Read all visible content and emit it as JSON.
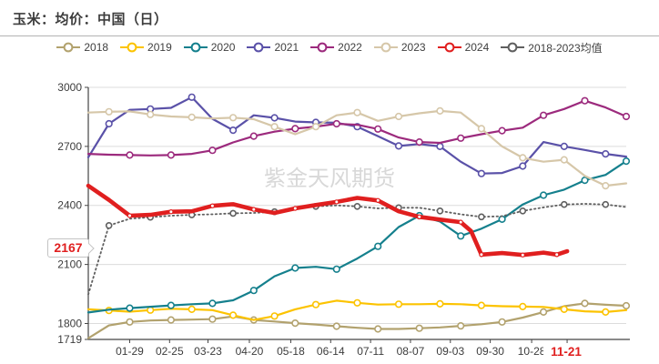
{
  "title": "玉米：均价：中国（日）",
  "watermark": "紫金天风期货",
  "latest_value_tag": "2167",
  "accent_red": "#e01f1f",
  "chart_data": {
    "type": "line",
    "title": "玉米：均价：中国（日）",
    "legend_position": "top",
    "grid": true,
    "y_axis": {
      "min": 1719,
      "max": 3000,
      "grid_values": [
        3000,
        2700,
        2400,
        2100,
        1800
      ],
      "ticks": [
        3000,
        2700,
        2400,
        2100,
        1800,
        1719
      ]
    },
    "x_axis": {
      "range_days": [
        1,
        365
      ],
      "tick_labels": [
        "01-29",
        "02-25",
        "03-23",
        "04-20",
        "05-18",
        "06-14",
        "07-11",
        "08-07",
        "09-03",
        "09-30",
        "10-28",
        "11-21"
      ],
      "tick_days": [
        29,
        56,
        82,
        110,
        138,
        165,
        192,
        219,
        246,
        273,
        301,
        325
      ],
      "highlighted_label": "11-21"
    },
    "latest_value": {
      "series": "2024",
      "value": 2167
    },
    "series": [
      {
        "id": "y2018",
        "name": "2018",
        "color": "#b2a26e",
        "width": 2.2,
        "dashed": false,
        "marker_offset": 2,
        "days": [
          1,
          15,
          29,
          43,
          57,
          71,
          85,
          99,
          113,
          127,
          141,
          155,
          169,
          183,
          197,
          211,
          225,
          239,
          253,
          267,
          281,
          295,
          309,
          323,
          337,
          351,
          365
        ],
        "values": [
          1725,
          1790,
          1808,
          1815,
          1818,
          1820,
          1822,
          1836,
          1818,
          1810,
          1802,
          1795,
          1786,
          1778,
          1772,
          1772,
          1776,
          1780,
          1788,
          1796,
          1808,
          1830,
          1858,
          1888,
          1902,
          1895,
          1890
        ]
      },
      {
        "id": "y2019",
        "name": "2019",
        "color": "#fcc300",
        "width": 2.2,
        "dashed": false,
        "marker_offset": 1,
        "days": [
          1,
          15,
          29,
          43,
          57,
          71,
          85,
          99,
          113,
          127,
          141,
          155,
          169,
          183,
          197,
          211,
          225,
          239,
          253,
          267,
          281,
          295,
          309,
          323,
          337,
          351,
          365
        ],
        "values": [
          1872,
          1866,
          1860,
          1868,
          1875,
          1872,
          1868,
          1842,
          1818,
          1838,
          1872,
          1896,
          1916,
          1905,
          1896,
          1898,
          1898,
          1900,
          1898,
          1892,
          1888,
          1886,
          1884,
          1872,
          1862,
          1858,
          1868
        ]
      },
      {
        "id": "y2020",
        "name": "2020",
        "color": "#15808d",
        "width": 2.2,
        "dashed": false,
        "marker_offset": 2,
        "days": [
          1,
          15,
          29,
          43,
          57,
          71,
          85,
          99,
          113,
          127,
          141,
          155,
          169,
          183,
          197,
          211,
          225,
          239,
          253,
          267,
          281,
          295,
          309,
          323,
          337,
          351,
          365
        ],
        "values": [
          1856,
          1870,
          1878,
          1885,
          1892,
          1898,
          1902,
          1918,
          1968,
          2040,
          2082,
          2088,
          2076,
          2130,
          2192,
          2290,
          2348,
          2318,
          2245,
          2282,
          2330,
          2405,
          2452,
          2480,
          2528,
          2555,
          2625
        ]
      },
      {
        "id": "y2021",
        "name": "2021",
        "color": "#5a51a8",
        "width": 2.2,
        "dashed": false,
        "marker_offset": 1,
        "days": [
          1,
          15,
          29,
          43,
          57,
          71,
          85,
          99,
          113,
          127,
          141,
          155,
          169,
          183,
          197,
          211,
          225,
          239,
          253,
          267,
          281,
          295,
          309,
          323,
          337,
          351,
          365
        ],
        "values": [
          2645,
          2815,
          2886,
          2890,
          2896,
          2950,
          2840,
          2782,
          2858,
          2845,
          2826,
          2822,
          2820,
          2800,
          2752,
          2702,
          2712,
          2700,
          2622,
          2562,
          2565,
          2600,
          2722,
          2700,
          2682,
          2662,
          2648
        ]
      },
      {
        "id": "y2022",
        "name": "2022",
        "color": "#9c2a7d",
        "width": 2.2,
        "dashed": false,
        "marker_offset": 2,
        "days": [
          1,
          15,
          29,
          43,
          57,
          71,
          85,
          99,
          113,
          127,
          141,
          155,
          169,
          183,
          197,
          211,
          225,
          239,
          253,
          267,
          281,
          295,
          309,
          323,
          337,
          351,
          365
        ],
        "values": [
          2662,
          2658,
          2656,
          2654,
          2656,
          2662,
          2680,
          2720,
          2752,
          2775,
          2790,
          2800,
          2815,
          2810,
          2788,
          2745,
          2722,
          2718,
          2742,
          2762,
          2780,
          2795,
          2858,
          2890,
          2932,
          2898,
          2852
        ]
      },
      {
        "id": "y2023",
        "name": "2023",
        "color": "#d6c7a9",
        "width": 2.2,
        "dashed": false,
        "marker_offset": 1,
        "days": [
          1,
          15,
          29,
          43,
          57,
          71,
          85,
          99,
          113,
          127,
          141,
          155,
          169,
          183,
          197,
          211,
          225,
          239,
          253,
          267,
          281,
          295,
          309,
          323,
          337,
          351,
          365
        ],
        "values": [
          2872,
          2876,
          2878,
          2862,
          2852,
          2848,
          2842,
          2846,
          2838,
          2800,
          2762,
          2800,
          2858,
          2872,
          2830,
          2852,
          2868,
          2880,
          2872,
          2790,
          2700,
          2642,
          2622,
          2632,
          2550,
          2500,
          2512
        ]
      },
      {
        "id": "mean",
        "name": "2018-2023均值",
        "color": "#5f5f5f",
        "width": 1.8,
        "dashed": true,
        "marker_offset": 1,
        "days": [
          1,
          15,
          29,
          43,
          57,
          71,
          85,
          99,
          113,
          127,
          141,
          155,
          169,
          183,
          197,
          211,
          225,
          239,
          253,
          267,
          281,
          295,
          309,
          323,
          337,
          351,
          365
        ],
        "values": [
          1948,
          2298,
          2332,
          2340,
          2348,
          2352,
          2355,
          2360,
          2362,
          2368,
          2385,
          2395,
          2400,
          2395,
          2385,
          2388,
          2388,
          2372,
          2355,
          2342,
          2345,
          2372,
          2390,
          2405,
          2408,
          2405,
          2392
        ]
      },
      {
        "id": "y2024",
        "name": "2024",
        "color": "#e01f1f",
        "width": 4.6,
        "dashed": false,
        "marker_offset": 2,
        "days": [
          1,
          15,
          29,
          43,
          57,
          71,
          85,
          99,
          113,
          127,
          141,
          155,
          169,
          183,
          197,
          211,
          225,
          239,
          253,
          260,
          267,
          281,
          295,
          309,
          318,
          325
        ],
        "values": [
          2500,
          2428,
          2348,
          2352,
          2368,
          2370,
          2398,
          2406,
          2380,
          2362,
          2385,
          2402,
          2418,
          2438,
          2425,
          2370,
          2342,
          2328,
          2315,
          2270,
          2150,
          2158,
          2148,
          2160,
          2150,
          2167
        ]
      }
    ]
  }
}
